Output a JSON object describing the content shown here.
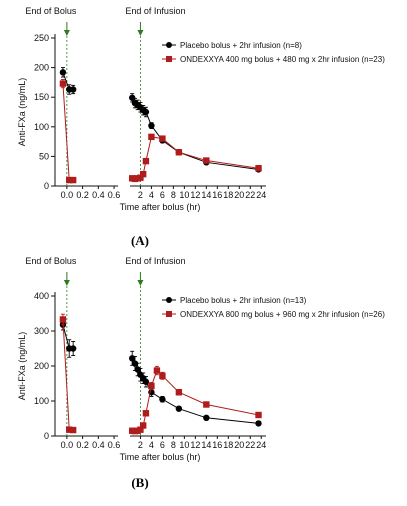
{
  "colors": {
    "placebo": "#000000",
    "andexxa": "#b01c1c",
    "annotation_line": "#2d7a1f",
    "arrow": "#2d7a1f",
    "axis": "#111111"
  },
  "chart_data": [
    {
      "panel_label": "(A)",
      "type": "line",
      "ylabel": "Anti-FXa (ng/mL)",
      "xlabel": "Time after bolus (hr)",
      "ylim": [
        0,
        250
      ],
      "yticks": [
        0,
        50,
        100,
        150,
        200,
        250
      ],
      "x_left_ticks": [
        0.0,
        0.2,
        0.4,
        0.6
      ],
      "x_left_tick_labels": [
        "0.0",
        "0.2",
        "0.4",
        "0.6"
      ],
      "x_right_ticks": [
        2,
        4,
        6,
        8,
        10,
        12,
        14,
        16,
        18,
        20,
        22,
        24
      ],
      "x_right_tick_labels": [
        "2",
        "4",
        "6",
        "8",
        "10",
        "12",
        "14",
        "16",
        "18",
        "20",
        "22",
        "24"
      ],
      "annotations": [
        "End of Bolus",
        "End of Infusion"
      ],
      "legend_position": "top-right",
      "series": [
        {
          "name": "Placebo bolus + 2hr infusion (n=8)",
          "marker": "circle",
          "left": [
            {
              "x": -0.05,
              "y": 192,
              "err": 8
            },
            {
              "x": 0.03,
              "y": 163,
              "err": 8
            },
            {
              "x": 0.08,
              "y": 163,
              "err": 7
            }
          ],
          "right": [
            {
              "x": 0.5,
              "y": 149,
              "err": 7
            },
            {
              "x": 1.0,
              "y": 140,
              "err": 8
            },
            {
              "x": 1.5,
              "y": 137,
              "err": 8
            },
            {
              "x": 2.0,
              "y": 133,
              "err": 8
            },
            {
              "x": 2.5,
              "y": 128,
              "err": 8
            },
            {
              "x": 3.0,
              "y": 125,
              "err": 8
            },
            {
              "x": 4.0,
              "y": 102,
              "err": 5
            },
            {
              "x": 6.0,
              "y": 77,
              "err": 4
            },
            {
              "x": 9.0,
              "y": 57,
              "err": 4
            },
            {
              "x": 14.0,
              "y": 40,
              "err": 3
            },
            {
              "x": 23.5,
              "y": 28,
              "err": 2
            }
          ]
        },
        {
          "name": "ONDEXXYA 400 mg bolus + 480 mg x 2hr infusion (n=23)",
          "marker": "square",
          "left": [
            {
              "x": -0.05,
              "y": 173,
              "err": 7
            },
            {
              "x": 0.03,
              "y": 10,
              "err": 2
            },
            {
              "x": 0.08,
              "y": 10,
              "err": 1
            }
          ],
          "right": [
            {
              "x": 0.5,
              "y": 13,
              "err": 2
            },
            {
              "x": 1.0,
              "y": 12,
              "err": 2
            },
            {
              "x": 1.5,
              "y": 13,
              "err": 2
            },
            {
              "x": 2.0,
              "y": 14,
              "err": 2
            },
            {
              "x": 2.5,
              "y": 20,
              "err": 2
            },
            {
              "x": 3.0,
              "y": 42,
              "err": 3
            },
            {
              "x": 4.0,
              "y": 83,
              "err": 4
            },
            {
              "x": 6.0,
              "y": 80,
              "err": 4
            },
            {
              "x": 9.0,
              "y": 57,
              "err": 3
            },
            {
              "x": 14.0,
              "y": 43,
              "err": 3
            },
            {
              "x": 23.5,
              "y": 30,
              "err": 2
            }
          ]
        }
      ]
    },
    {
      "panel_label": "(B)",
      "type": "line",
      "ylabel": "Anti-FXa (ng/mL)",
      "xlabel": "Time after bolus (hr)",
      "ylim": [
        0,
        400
      ],
      "yticks": [
        0,
        100,
        200,
        300,
        400
      ],
      "x_left_ticks": [
        0.0,
        0.2,
        0.4,
        0.6
      ],
      "x_left_tick_labels": [
        "0.0",
        "0.2",
        "0.4",
        "0.6"
      ],
      "x_right_ticks": [
        2,
        4,
        6,
        8,
        10,
        12,
        14,
        16,
        18,
        20,
        22,
        24
      ],
      "x_right_tick_labels": [
        "2",
        "4",
        "6",
        "8",
        "10",
        "12",
        "14",
        "16",
        "18",
        "20",
        "22",
        "24"
      ],
      "annotations": [
        "End of Bolus",
        "End of Infusion"
      ],
      "legend_position": "top-right",
      "series": [
        {
          "name": "Placebo bolus + 2hr infusion (n=13)",
          "marker": "circle",
          "left": [
            {
              "x": -0.05,
              "y": 318,
              "err": 15
            },
            {
              "x": 0.03,
              "y": 250,
              "err": 25
            },
            {
              "x": 0.08,
              "y": 250,
              "err": 20
            }
          ],
          "right": [
            {
              "x": 0.5,
              "y": 222,
              "err": 20
            },
            {
              "x": 1.0,
              "y": 207,
              "err": 20
            },
            {
              "x": 1.5,
              "y": 190,
              "err": 18
            },
            {
              "x": 2.0,
              "y": 175,
              "err": 18
            },
            {
              "x": 2.5,
              "y": 165,
              "err": 15
            },
            {
              "x": 3.0,
              "y": 155,
              "err": 15
            },
            {
              "x": 4.0,
              "y": 125,
              "err": 12
            },
            {
              "x": 6.0,
              "y": 105,
              "err": 8
            },
            {
              "x": 9.0,
              "y": 78,
              "err": 6
            },
            {
              "x": 14.0,
              "y": 52,
              "err": 4
            },
            {
              "x": 23.5,
              "y": 36,
              "err": 3
            }
          ]
        },
        {
          "name": "ONDEXXYA 800 mg bolus + 960 mg x 2hr infusion (n=26)",
          "marker": "square",
          "left": [
            {
              "x": -0.05,
              "y": 333,
              "err": 15
            },
            {
              "x": 0.03,
              "y": 18,
              "err": 3
            },
            {
              "x": 0.08,
              "y": 17,
              "err": 3
            }
          ],
          "right": [
            {
              "x": 0.5,
              "y": 15,
              "err": 3
            },
            {
              "x": 1.0,
              "y": 14,
              "err": 3
            },
            {
              "x": 1.5,
              "y": 15,
              "err": 3
            },
            {
              "x": 2.0,
              "y": 18,
              "err": 3
            },
            {
              "x": 2.5,
              "y": 30,
              "err": 4
            },
            {
              "x": 3.0,
              "y": 65,
              "err": 6
            },
            {
              "x": 4.0,
              "y": 143,
              "err": 10
            },
            {
              "x": 5.0,
              "y": 187,
              "err": 12
            },
            {
              "x": 6.0,
              "y": 172,
              "err": 10
            },
            {
              "x": 9.0,
              "y": 125,
              "err": 8
            },
            {
              "x": 14.0,
              "y": 90,
              "err": 6
            },
            {
              "x": 23.5,
              "y": 60,
              "err": 4
            }
          ]
        }
      ]
    }
  ]
}
